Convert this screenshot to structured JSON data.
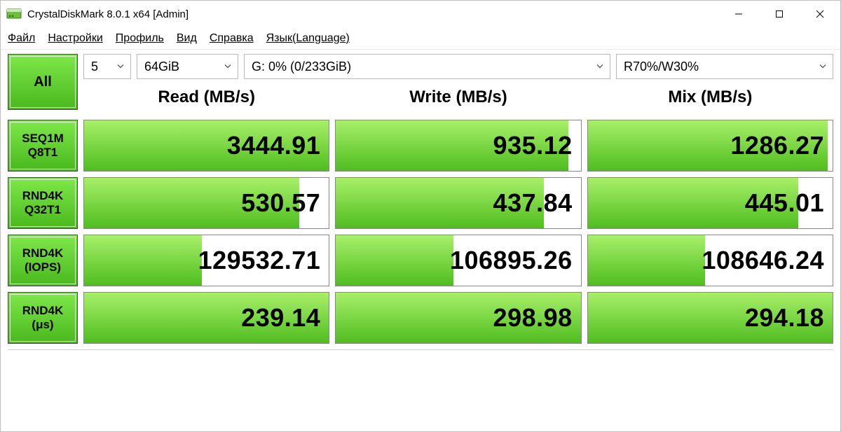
{
  "window": {
    "title": "CrystalDiskMark 8.0.1 x64 [Admin]"
  },
  "menu": {
    "items": [
      "Файл",
      "Настройки",
      "Профиль",
      "Вид",
      "Справка",
      "Язык(Language)"
    ]
  },
  "controls": {
    "all_label": "All",
    "runs": "5",
    "size": "64GiB",
    "drive": "G: 0% (0/233GiB)",
    "profile": "R70%/W30%"
  },
  "columns": [
    "Read (MB/s)",
    "Write (MB/s)",
    "Mix (MB/s)"
  ],
  "rows": [
    {
      "label_top": "SEQ1M",
      "label_bot": "Q8T1"
    },
    {
      "label_top": "RND4K",
      "label_bot": "Q32T1"
    },
    {
      "label_top": "RND4K",
      "label_bot": "(IOPS)"
    },
    {
      "label_top": "RND4K",
      "label_bot": "(μs)"
    }
  ],
  "results": [
    {
      "read": "3444.91",
      "write": "935.12",
      "mix": "1286.27",
      "read_fill": 100,
      "write_fill": 95,
      "mix_fill": 98
    },
    {
      "read": "530.57",
      "write": "437.84",
      "mix": "445.01",
      "read_fill": 88,
      "write_fill": 85,
      "mix_fill": 86
    },
    {
      "read": "129532.71",
      "write": "106895.26",
      "mix": "108646.24",
      "read_fill": 48,
      "write_fill": 48,
      "mix_fill": 48
    },
    {
      "read": "239.14",
      "write": "298.98",
      "mix": "294.18",
      "read_fill": 100,
      "write_fill": 100,
      "mix_fill": 100
    }
  ],
  "colors": {
    "button_grad_a": "#7fe84a",
    "button_grad_b": "#49b81e",
    "button_border": "#4a4a4a",
    "cell_grad_a": "#a8f06a",
    "cell_grad_b": "#4fbd1f",
    "cell_border": "#888888",
    "bg": "#ffffff"
  },
  "fonts": {
    "value_size_pt": 27,
    "header_size_pt": 18,
    "button_size_pt": 13
  }
}
